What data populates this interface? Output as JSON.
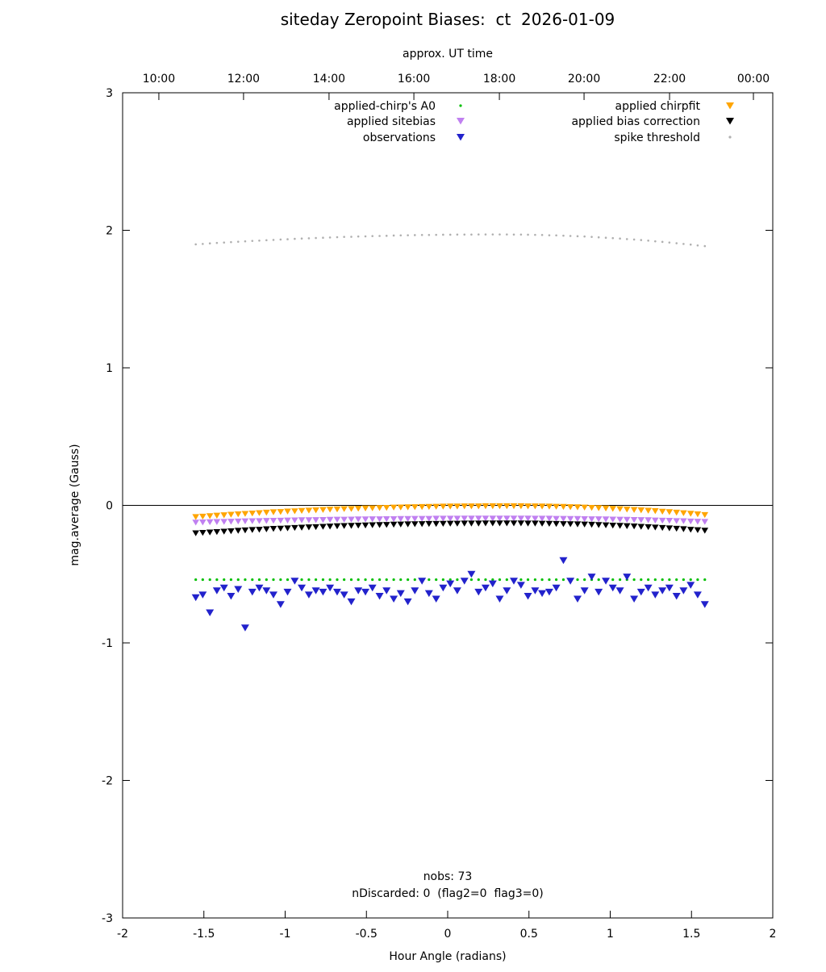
{
  "chart_data": {
    "type": "scatter",
    "title": "siteday Zeropoint Biases:  ct  2026-01-09",
    "top_axis": {
      "label": "approx. UT time",
      "tick_labels": [
        "10:00",
        "12:00",
        "14:00",
        "16:00",
        "18:00",
        "20:00",
        "22:00",
        "00:00"
      ],
      "tick_positions_rad": [
        -1.777,
        -1.256,
        -0.73,
        -0.208,
        0.318,
        0.839,
        1.365,
        1.881
      ]
    },
    "x_axis": {
      "label": "Hour Angle (radians)",
      "min": -2,
      "max": 2,
      "ticks": [
        -2,
        -1.5,
        -1,
        -0.5,
        0,
        0.5,
        1,
        1.5,
        2
      ]
    },
    "y_axis": {
      "label": "mag.average (Gauss)",
      "min": -3,
      "max": 3,
      "ticks": [
        -3,
        -2,
        -1,
        0,
        1,
        2,
        3
      ]
    },
    "grid": false,
    "zero_line": true,
    "annotations": {
      "nobs": "nobs: 73",
      "ndiscarded": "nDiscarded: 0  (flag2=0  flag3=0)"
    },
    "nobs": 73,
    "ndiscarded": 0,
    "legend": {
      "left": [
        "applied-chirp's A0",
        "applied sitebias",
        "observations"
      ],
      "right": [
        "applied chirpfit",
        "applied bias correction",
        "spike threshold"
      ]
    },
    "x": [
      -1.55,
      -1.507,
      -1.463,
      -1.42,
      -1.376,
      -1.333,
      -1.289,
      -1.246,
      -1.202,
      -1.159,
      -1.115,
      -1.072,
      -1.028,
      -0.985,
      -0.941,
      -0.898,
      -0.854,
      -0.811,
      -0.767,
      -0.724,
      -0.68,
      -0.637,
      -0.593,
      -0.55,
      -0.506,
      -0.463,
      -0.419,
      -0.376,
      -0.332,
      -0.289,
      -0.245,
      -0.202,
      -0.158,
      -0.115,
      -0.071,
      -0.028,
      0.016,
      0.059,
      0.103,
      0.146,
      0.19,
      0.233,
      0.277,
      0.32,
      0.364,
      0.407,
      0.451,
      0.494,
      0.538,
      0.581,
      0.625,
      0.668,
      0.712,
      0.755,
      0.799,
      0.842,
      0.886,
      0.929,
      0.973,
      1.016,
      1.06,
      1.103,
      1.147,
      1.19,
      1.234,
      1.277,
      1.321,
      1.364,
      1.408,
      1.451,
      1.495,
      1.538,
      1.582
    ],
    "series": [
      {
        "name": "applied-chirp's A0",
        "marker": "dot",
        "marker_size": 1.6,
        "color": "#00bf00",
        "values": [
          -0.54,
          -0.54,
          -0.54,
          -0.54,
          -0.54,
          -0.54,
          -0.54,
          -0.54,
          -0.54,
          -0.54,
          -0.54,
          -0.54,
          -0.54,
          -0.54,
          -0.54,
          -0.54,
          -0.54,
          -0.54,
          -0.54,
          -0.54,
          -0.54,
          -0.54,
          -0.54,
          -0.54,
          -0.54,
          -0.54,
          -0.54,
          -0.54,
          -0.54,
          -0.54,
          -0.54,
          -0.54,
          -0.54,
          -0.54,
          -0.54,
          -0.54,
          -0.54,
          -0.54,
          -0.54,
          -0.54,
          -0.54,
          -0.54,
          -0.54,
          -0.54,
          -0.54,
          -0.54,
          -0.54,
          -0.54,
          -0.54,
          -0.54,
          -0.54,
          -0.54,
          -0.54,
          -0.54,
          -0.54,
          -0.54,
          -0.54,
          -0.54,
          -0.54,
          -0.54,
          -0.54,
          -0.54,
          -0.54,
          -0.54,
          -0.54,
          -0.54,
          -0.54,
          -0.54,
          -0.54,
          -0.54,
          -0.54,
          -0.54,
          -0.54
        ]
      },
      {
        "name": "applied chirpfit",
        "marker": "triangle",
        "marker_size": 4.3,
        "color": "#ffa500",
        "values": [
          -0.084,
          -0.081,
          -0.077,
          -0.074,
          -0.071,
          -0.067,
          -0.064,
          -0.061,
          -0.058,
          -0.055,
          -0.052,
          -0.049,
          -0.047,
          -0.044,
          -0.042,
          -0.039,
          -0.037,
          -0.035,
          -0.032,
          -0.03,
          -0.028,
          -0.026,
          -0.025,
          -0.023,
          -0.021,
          -0.02,
          -0.018,
          -0.017,
          -0.015,
          -0.014,
          -0.013,
          -0.012,
          -0.011,
          -0.01,
          -0.009,
          -0.008,
          -0.007,
          -0.007,
          -0.006,
          -0.006,
          -0.006,
          -0.005,
          -0.005,
          -0.005,
          -0.005,
          -0.005,
          -0.005,
          -0.006,
          -0.006,
          -0.007,
          -0.008,
          -0.009,
          -0.01,
          -0.012,
          -0.013,
          -0.015,
          -0.017,
          -0.019,
          -0.021,
          -0.024,
          -0.026,
          -0.029,
          -0.032,
          -0.035,
          -0.038,
          -0.041,
          -0.045,
          -0.048,
          -0.052,
          -0.056,
          -0.06,
          -0.064,
          -0.069
        ]
      },
      {
        "name": "applied sitebias",
        "marker": "triangle",
        "marker_size": 4.3,
        "color": "#c080f0",
        "values": [
          -0.124,
          -0.123,
          -0.121,
          -0.12,
          -0.119,
          -0.118,
          -0.116,
          -0.115,
          -0.114,
          -0.113,
          -0.112,
          -0.111,
          -0.11,
          -0.109,
          -0.108,
          -0.107,
          -0.107,
          -0.106,
          -0.105,
          -0.104,
          -0.103,
          -0.103,
          -0.102,
          -0.101,
          -0.101,
          -0.1,
          -0.1,
          -0.099,
          -0.099,
          -0.098,
          -0.098,
          -0.097,
          -0.097,
          -0.097,
          -0.096,
          -0.096,
          -0.096,
          -0.096,
          -0.095,
          -0.095,
          -0.095,
          -0.095,
          -0.095,
          -0.095,
          -0.095,
          -0.095,
          -0.095,
          -0.095,
          -0.096,
          -0.096,
          -0.096,
          -0.097,
          -0.097,
          -0.098,
          -0.098,
          -0.099,
          -0.1,
          -0.1,
          -0.101,
          -0.102,
          -0.103,
          -0.104,
          -0.105,
          -0.106,
          -0.107,
          -0.109,
          -0.11,
          -0.111,
          -0.113,
          -0.114,
          -0.116,
          -0.118,
          -0.119
        ]
      },
      {
        "name": "applied bias correction",
        "marker": "triangle",
        "marker_size": 4.3,
        "color": "#000000",
        "values": [
          -0.202,
          -0.199,
          -0.196,
          -0.193,
          -0.19,
          -0.187,
          -0.184,
          -0.181,
          -0.178,
          -0.176,
          -0.173,
          -0.17,
          -0.168,
          -0.166,
          -0.163,
          -0.161,
          -0.159,
          -0.157,
          -0.155,
          -0.153,
          -0.151,
          -0.149,
          -0.148,
          -0.146,
          -0.145,
          -0.143,
          -0.142,
          -0.141,
          -0.139,
          -0.138,
          -0.137,
          -0.136,
          -0.135,
          -0.134,
          -0.134,
          -0.133,
          -0.132,
          -0.132,
          -0.131,
          -0.131,
          -0.131,
          -0.13,
          -0.13,
          -0.13,
          -0.13,
          -0.13,
          -0.13,
          -0.131,
          -0.131,
          -0.132,
          -0.133,
          -0.134,
          -0.135,
          -0.136,
          -0.137,
          -0.138,
          -0.14,
          -0.142,
          -0.144,
          -0.146,
          -0.148,
          -0.15,
          -0.152,
          -0.155,
          -0.157,
          -0.16,
          -0.163,
          -0.166,
          -0.169,
          -0.172,
          -0.176,
          -0.179,
          -0.183
        ]
      },
      {
        "name": "observations",
        "marker": "triangle",
        "marker_size": 5,
        "color": "#2222cc",
        "values": [
          -0.67,
          -0.65,
          -0.78,
          -0.62,
          -0.6,
          -0.66,
          -0.61,
          -0.89,
          -0.63,
          -0.6,
          -0.62,
          -0.65,
          -0.72,
          -0.63,
          -0.55,
          -0.6,
          -0.65,
          -0.62,
          -0.63,
          -0.6,
          -0.63,
          -0.65,
          -0.7,
          -0.62,
          -0.63,
          -0.6,
          -0.66,
          -0.62,
          -0.68,
          -0.64,
          -0.7,
          -0.62,
          -0.55,
          -0.64,
          -0.68,
          -0.6,
          -0.57,
          -0.62,
          -0.55,
          -0.5,
          -0.63,
          -0.6,
          -0.57,
          -0.68,
          -0.62,
          -0.55,
          -0.58,
          -0.66,
          -0.62,
          -0.64,
          -0.63,
          -0.6,
          -0.4,
          -0.55,
          -0.68,
          -0.62,
          -0.52,
          -0.63,
          -0.55,
          -0.6,
          -0.62,
          -0.52,
          -0.68,
          -0.63,
          -0.6,
          -0.65,
          -0.62,
          -0.6,
          -0.66,
          -0.62,
          -0.58,
          -0.65,
          -0.72
        ]
      },
      {
        "name": "spike threshold",
        "marker": "dot",
        "marker_size": 1.3,
        "color": "#b0b0b0",
        "values": [
          1.898,
          1.901,
          1.905,
          1.908,
          1.911,
          1.914,
          1.917,
          1.92,
          1.923,
          1.925,
          1.928,
          1.93,
          1.933,
          1.935,
          1.938,
          1.94,
          1.942,
          1.944,
          1.946,
          1.948,
          1.95,
          1.952,
          1.953,
          1.955,
          1.956,
          1.958,
          1.959,
          1.96,
          1.962,
          1.963,
          1.964,
          1.965,
          1.966,
          1.966,
          1.967,
          1.968,
          1.968,
          1.969,
          1.969,
          1.969,
          1.97,
          1.97,
          1.97,
          1.97,
          1.97,
          1.969,
          1.969,
          1.968,
          1.967,
          1.966,
          1.964,
          1.963,
          1.961,
          1.959,
          1.957,
          1.955,
          1.952,
          1.949,
          1.946,
          1.943,
          1.94,
          1.936,
          1.933,
          1.929,
          1.925,
          1.92,
          1.916,
          1.911,
          1.906,
          1.901,
          1.896,
          1.89,
          1.885
        ]
      }
    ]
  }
}
